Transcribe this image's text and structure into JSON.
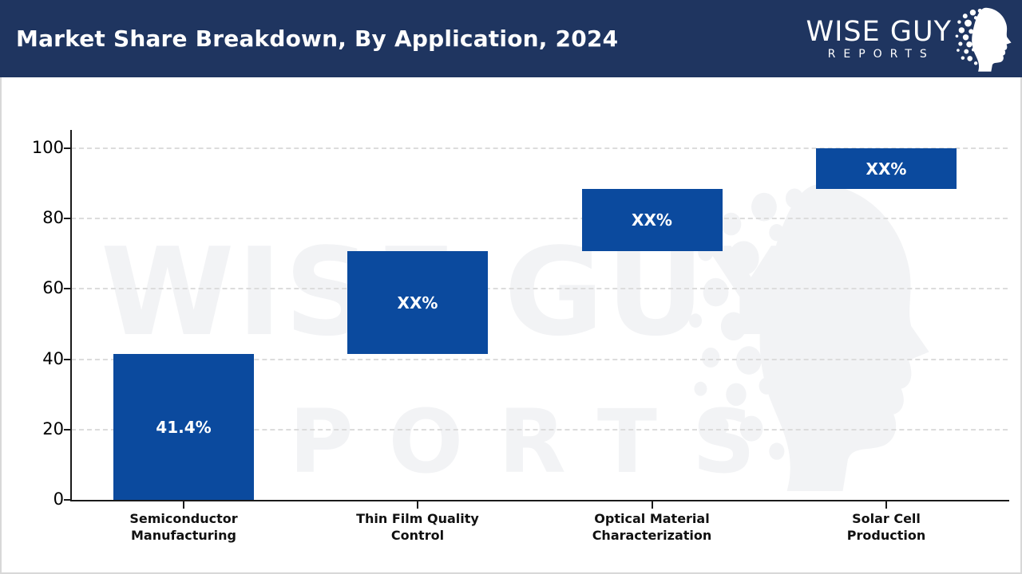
{
  "header": {
    "title": "Market Share Breakdown, By Application, 2024",
    "bg_color": "#1f3560",
    "logo": {
      "name": "WISE GUY",
      "sub": "REPORTS"
    }
  },
  "watermark": {
    "line1": "WISE GUY",
    "line2": "PORTS"
  },
  "chart_data": {
    "type": "bar",
    "subtype": "waterfall",
    "title": "Market Share Breakdown, By Application, 2024",
    "categories": [
      [
        "Semiconductor",
        "Manufacturing"
      ],
      [
        "Thin Film Quality",
        "Control"
      ],
      [
        "Optical Material",
        "Characterization"
      ],
      [
        "Solar Cell",
        "Production"
      ]
    ],
    "series": [
      {
        "name": "Market share (%)",
        "segments": [
          {
            "category": "Semiconductor Manufacturing",
            "start": 0,
            "end": 41.4,
            "value_est": 41.4,
            "label": "41.4%"
          },
          {
            "category": "Thin Film Quality Control",
            "start": 41.4,
            "end": 70.7,
            "value_est": 29.3,
            "label": "XX%"
          },
          {
            "category": "Optical Material Characterization",
            "start": 70.7,
            "end": 88.4,
            "value_est": 17.7,
            "label": "XX%"
          },
          {
            "category": "Solar Cell Production",
            "start": 88.4,
            "end": 100,
            "value_est": 11.6,
            "label": "XX%"
          }
        ]
      }
    ],
    "yticks": [
      0,
      20,
      40,
      60,
      80,
      100
    ],
    "ylim": [
      0,
      105
    ],
    "xlabel": "",
    "ylabel": "",
    "legend": "none",
    "grid": {
      "axis": "y",
      "style": "dashed",
      "color": "#dcdcdc"
    },
    "bar_color": "#0b4a9e",
    "bar_label_color": "#ffffff"
  }
}
